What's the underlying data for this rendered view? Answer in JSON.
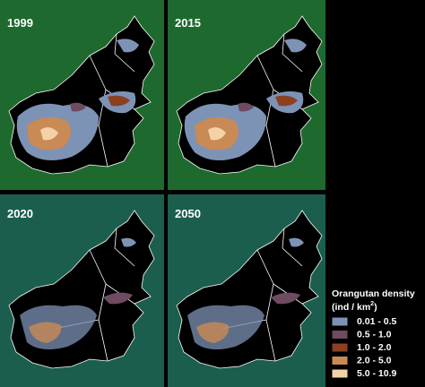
{
  "panels": [
    {
      "label": "1999"
    },
    {
      "label": "2015"
    },
    {
      "label": "2020"
    },
    {
      "label": "2050"
    }
  ],
  "legend": {
    "title": "Orangutan density",
    "unit": "(ind / km",
    "unit_sup": "2",
    "unit_end": ")",
    "items": [
      {
        "label": "0.01 - 0.5",
        "color": "#7d93b6"
      },
      {
        "label": "0.5 - 1.0",
        "color": "#6d4b60"
      },
      {
        "label": "1.0 - 2.0",
        "color": "#8c4020"
      },
      {
        "label": "2.0 - 5.0",
        "color": "#c98a55"
      },
      {
        "label": "5.0 - 10.9",
        "color": "#f2d3a6"
      }
    ]
  }
}
